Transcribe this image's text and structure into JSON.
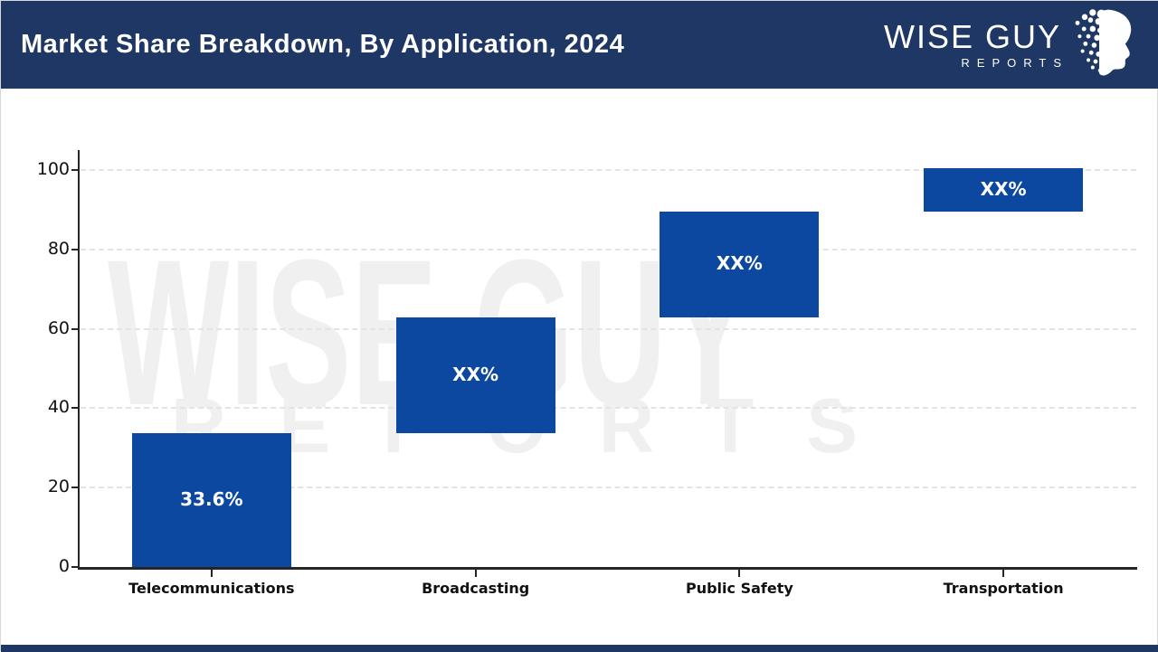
{
  "header": {
    "title": "Market Share Breakdown, By Application, 2024",
    "logo": {
      "line1": "WISE GUY",
      "line2": "REPORTS"
    }
  },
  "watermark": {
    "line1": "WISE GUY",
    "line2": "REPORTS"
  },
  "colors": {
    "header_bg": "#1e3764",
    "bar": "#0d48a0",
    "axis": "#262626",
    "grid": "#e3e3e3",
    "watermark": "#f0f0f0",
    "bar_label": "#ffffff"
  },
  "chart_data": {
    "type": "bar",
    "subtype": "waterfall",
    "title": "Market Share Breakdown, By Application, 2024",
    "categories": [
      "Telecommunications",
      "Broadcasting",
      "Public Safety",
      "Transportation"
    ],
    "segments": [
      {
        "category": "Telecommunications",
        "start": 0,
        "end": 33.6,
        "value_label": "33.6%"
      },
      {
        "category": "Broadcasting",
        "start": 33.6,
        "end": 62.8,
        "value_label": "XX%"
      },
      {
        "category": "Public Safety",
        "start": 62.9,
        "end": 89.5,
        "value_label": "XX%"
      },
      {
        "category": "Transportation",
        "start": 89.5,
        "end": 100.4,
        "value_label": "XX%"
      }
    ],
    "yticks": [
      0,
      20,
      40,
      60,
      80,
      100
    ],
    "ylim": [
      0,
      105
    ],
    "xlabel": "",
    "ylabel": "",
    "grid": "horizontal-dashed",
    "legend": "none"
  }
}
